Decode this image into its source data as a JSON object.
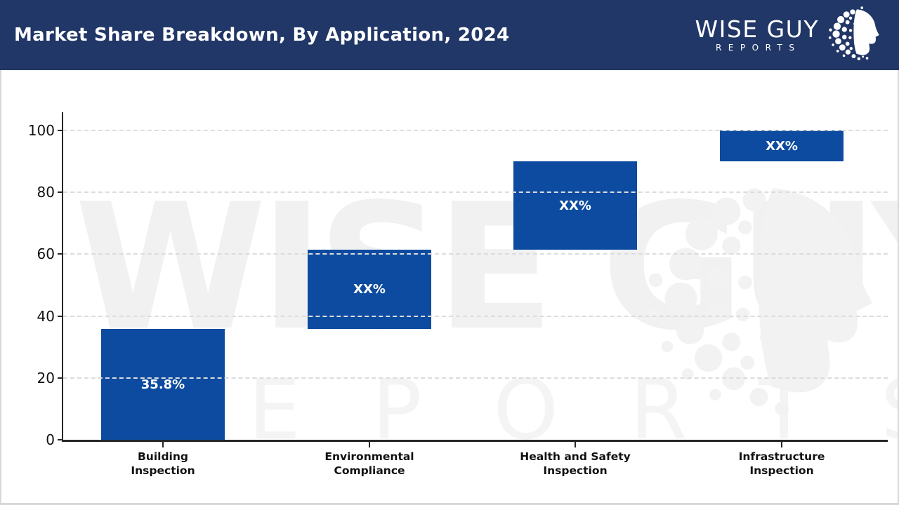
{
  "header": {
    "title": "Market Share Breakdown, By Application, 2024",
    "bg_color": "#213767",
    "logo": {
      "line1": "WISE GUY",
      "line2": "REPORTS"
    }
  },
  "watermark": {
    "line1": "WISE GUY",
    "line2": "R E P O R T S"
  },
  "chart_data": {
    "type": "bar",
    "subtype": "floating-waterfall",
    "title": "Market Share Breakdown, By Application, 2024",
    "categories": [
      "Building Inspection",
      "Environmental Compliance",
      "Health and Safety Inspection",
      "Infrastructure Inspection"
    ],
    "category_label_lines": [
      [
        "Building",
        "Inspection"
      ],
      [
        "Environmental",
        "Compliance"
      ],
      [
        "Health and Safety",
        "Inspection"
      ],
      [
        "Infrastructure",
        "Inspection"
      ]
    ],
    "segments": [
      {
        "start": 0,
        "end": 35.8,
        "value_label": "35.8%"
      },
      {
        "start": 35.8,
        "end": 61.4,
        "value_label": "XX%"
      },
      {
        "start": 61.4,
        "end": 90,
        "value_label": "XX%"
      },
      {
        "start": 90,
        "end": 100,
        "value_label": "XX%"
      }
    ],
    "bar_color": "#0c4b9f",
    "value_label_color": "#ffffff",
    "xlabel": "",
    "ylabel": "",
    "ylim": [
      0,
      100
    ],
    "yticks": [
      0,
      20,
      40,
      60,
      80,
      100
    ],
    "grid": "horizontal-dashed",
    "legend": "none"
  }
}
